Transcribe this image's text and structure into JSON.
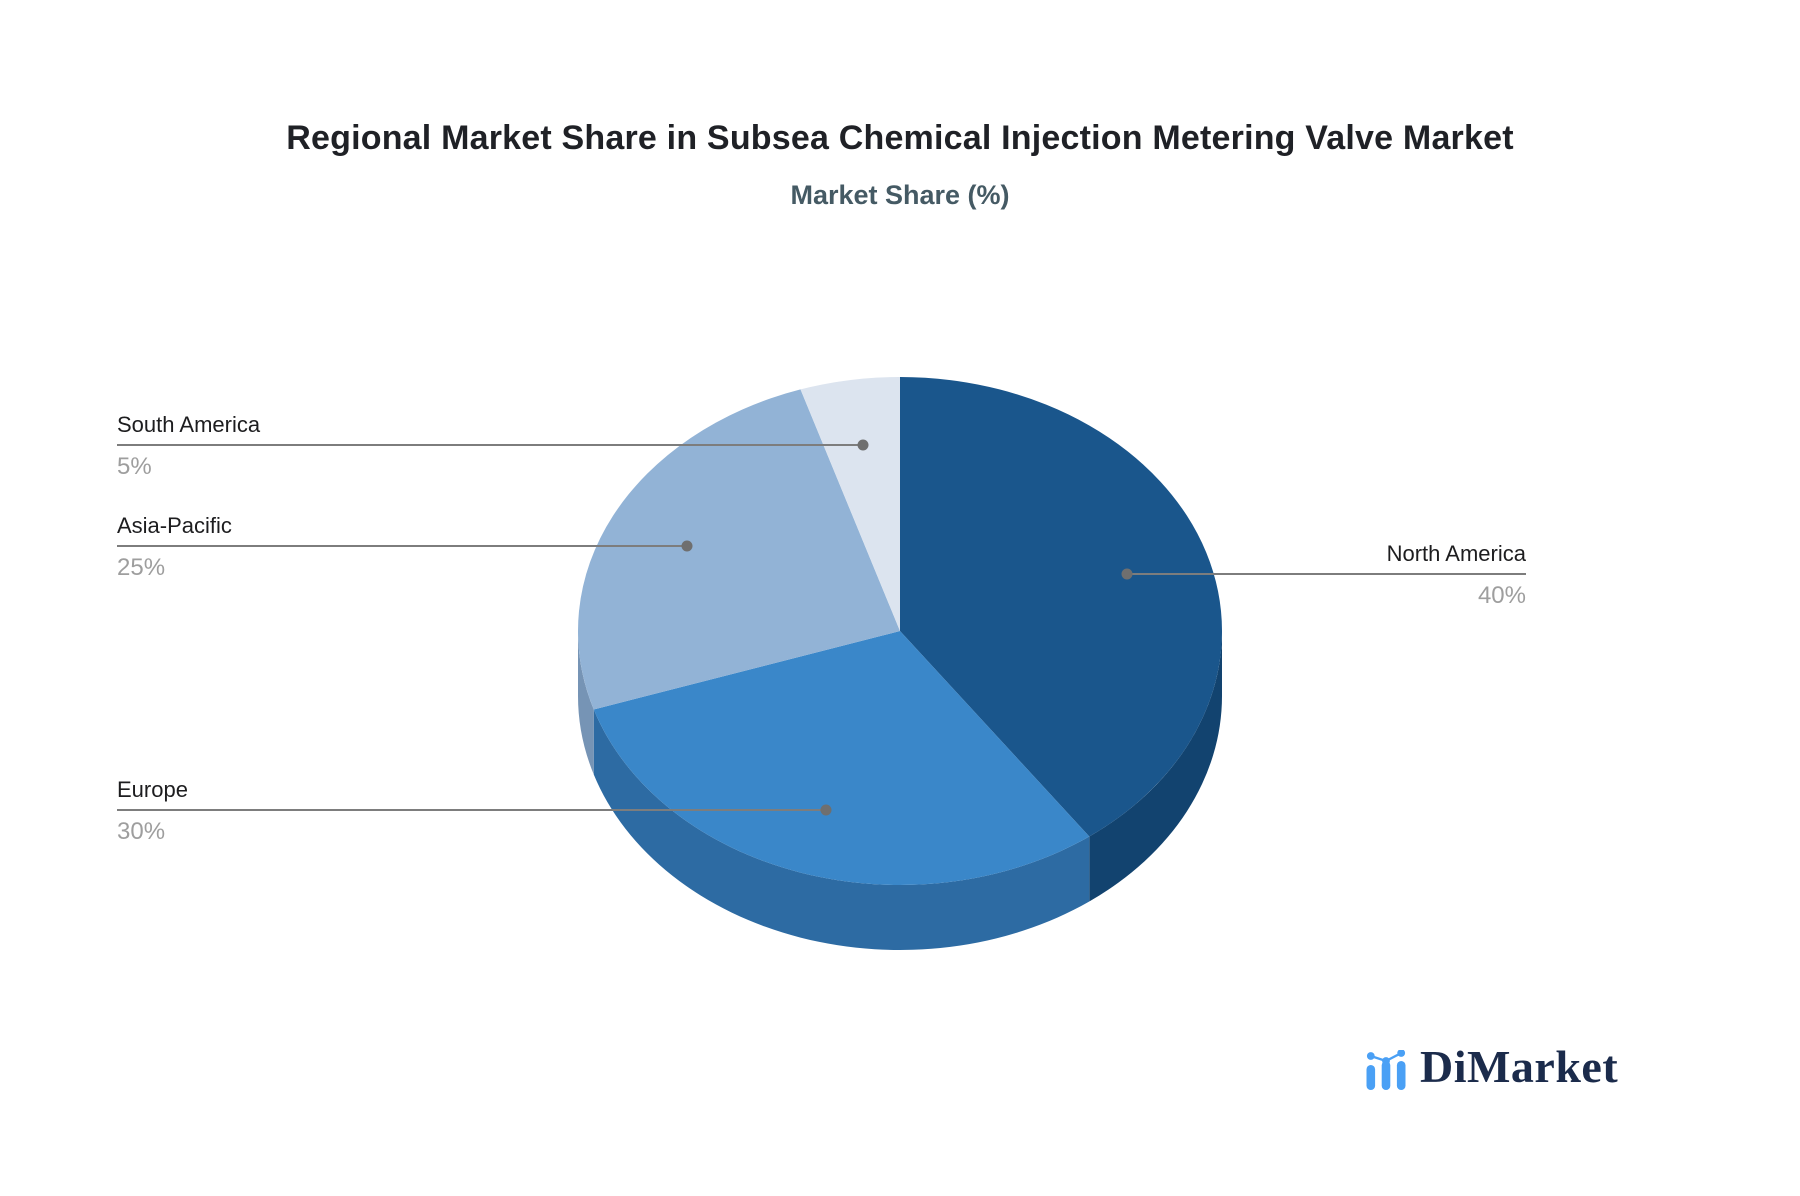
{
  "page": {
    "background": "#ffffff"
  },
  "header": {
    "title": "Regional Market Share in Subsea Chemical Injection Metering Valve Market",
    "subtitle": "Market Share (%)"
  },
  "brand": {
    "name": "DiMarket",
    "icon": "bar-chart-sparkline-icon"
  },
  "chart_data": {
    "type": "pie",
    "style": "3d",
    "title": "Regional Market Share in Subsea Chemical Injection Metering Valve Market",
    "subtitle": "Market Share (%)",
    "unit": "%",
    "direction": "clockwise",
    "start_angle_deg": 0,
    "legend_position": "callout-labels",
    "slices": [
      {
        "label": "North America",
        "value": 40,
        "pct_text": "40%",
        "color": "#1a568c",
        "side_color": "#12436f"
      },
      {
        "label": "Europe",
        "value": 30,
        "pct_text": "30%",
        "color": "#3a87c9",
        "side_color": "#2d6ba3"
      },
      {
        "label": "Asia-Pacific",
        "value": 25,
        "pct_text": "25%",
        "color": "#92b3d6",
        "side_color": "#7694b5"
      },
      {
        "label": "South America",
        "value": 5,
        "pct_text": "5%",
        "color": "#dce4ef",
        "side_color": "#b8c4d6"
      }
    ],
    "callout_line_color": "#7d7d7d",
    "callout_dot_color": "#6f6f6f",
    "label_color": "#1d1d1f",
    "value_color": "#9e9e9e"
  }
}
